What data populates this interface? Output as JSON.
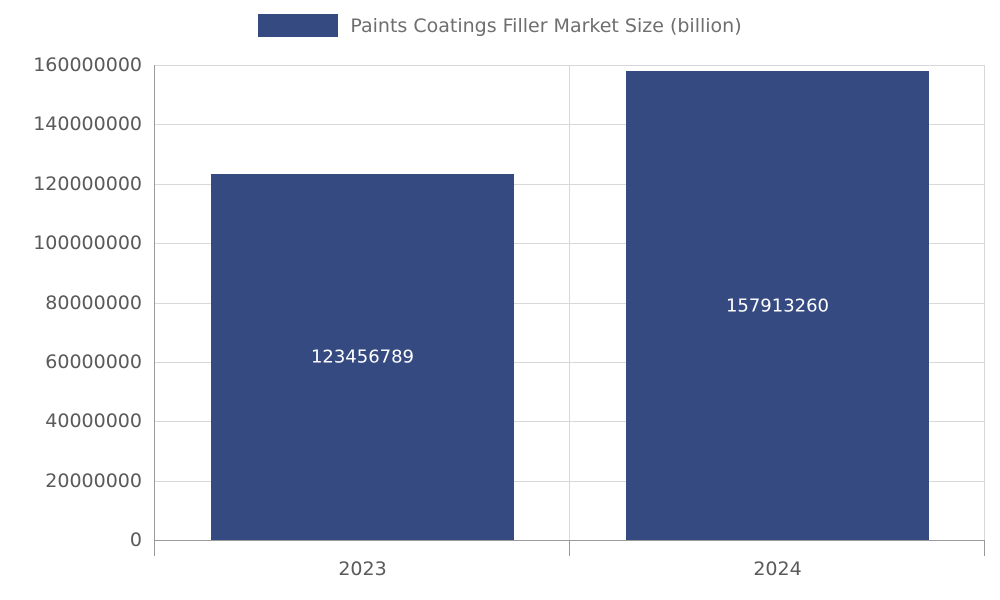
{
  "chart_data": {
    "type": "bar",
    "title": "Paints Coatings Filler Market Size (billion)",
    "categories": [
      "2023",
      "2024"
    ],
    "series": [
      {
        "name": "Paints Coatings Filler Market Size (billion)",
        "values": [
          123456789,
          157913260
        ]
      }
    ],
    "value_labels": [
      "123456789",
      "157913260"
    ],
    "xlabel": "",
    "ylabel": "",
    "ylim": [
      0,
      160000000
    ],
    "ytick_step": 20000000,
    "ytick_labels": [
      "0",
      "20000000",
      "40000000",
      "60000000",
      "80000000",
      "100000000",
      "120000000",
      "140000000",
      "160000000"
    ],
    "grid": "on",
    "legend_position": "top-center",
    "colors": {
      "bar_fill": "#364a82",
      "value_label_text": "#ffffff",
      "grid_line": "#d8d8d8",
      "axis_line": "#9a9a9a",
      "tick_text": "#5a5a5a",
      "title_text": "#6e6e6e"
    }
  }
}
